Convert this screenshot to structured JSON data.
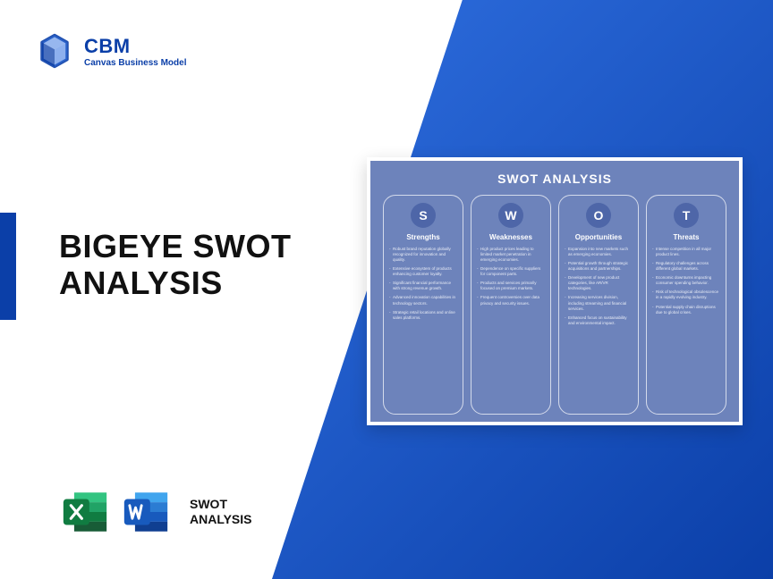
{
  "brand": {
    "abbr": "CBM",
    "tagline": "Canvas Business Model",
    "logo_color": "#0b3fa8"
  },
  "colors": {
    "blue_gradient_start": "#2f6fe0",
    "blue_gradient_end": "#0b3fa8",
    "accent": "#0b3fa8",
    "card_bg": "#6d83bb",
    "circle_bg": "#4e66a8",
    "excel_dark": "#107c41",
    "excel_light": "#21a366",
    "word_dark": "#185abd",
    "word_light": "#41a5ee"
  },
  "title": {
    "line1": "BIGEYE SWOT",
    "line2": "ANALYSIS"
  },
  "file_label": {
    "line1": "SWOT",
    "line2": "ANALYSIS"
  },
  "swot": {
    "title": "SWOT ANALYSIS",
    "columns": [
      {
        "letter": "S",
        "heading": "Strengths",
        "items": [
          "Robust brand reputation globally recognized for innovation and quality.",
          "Extensive ecosystem of products enhancing customer loyalty.",
          "Significant financial performance with strong revenue growth.",
          "Advanced innovation capabilities in technology sectors.",
          "Strategic retail locations and online sales platforms."
        ]
      },
      {
        "letter": "W",
        "heading": "Weaknesses",
        "items": [
          "High product prices leading to limited market penetration in emerging economies.",
          "Dependence on specific suppliers for component parts.",
          "Products and services primarily focused on premium markets.",
          "Frequent controversies over data privacy and security issues."
        ]
      },
      {
        "letter": "O",
        "heading": "Opportunities",
        "items": [
          "Expansion into new markets such as emerging economies.",
          "Potential growth through strategic acquisitions and partnerships.",
          "Development of new product categories, like AR/VR technologies.",
          "Increasing services division, including streaming and financial services.",
          "Enhanced focus on sustainability and environmental impact."
        ]
      },
      {
        "letter": "T",
        "heading": "Threats",
        "items": [
          "Intense competition in all major product lines.",
          "Regulatory challenges across different global markets.",
          "Economic downturns impacting consumer spending behavior.",
          "Risk of technological obsolescence in a rapidly evolving industry.",
          "Potential supply chain disruptions due to global crises."
        ]
      }
    ]
  }
}
